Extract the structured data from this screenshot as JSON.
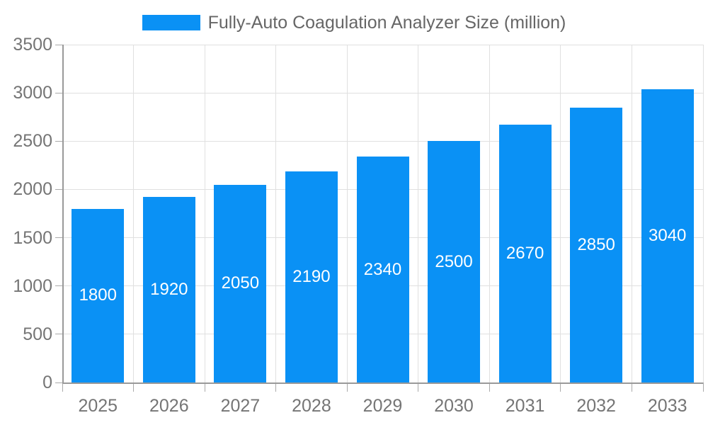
{
  "legend": {
    "label": "Fully-Auto Coagulation Analyzer Size (million)"
  },
  "chart_data": {
    "type": "bar",
    "title": "Fully-Auto Coagulation Analyzer Size (million)",
    "categories": [
      "2025",
      "2026",
      "2027",
      "2028",
      "2029",
      "2030",
      "2031",
      "2032",
      "2033"
    ],
    "values": [
      1800,
      1920,
      2050,
      2190,
      2340,
      2500,
      2670,
      2850,
      3040
    ],
    "xlabel": "",
    "ylabel": "",
    "ylim": [
      0,
      3500
    ],
    "ytick_step": 500,
    "grid": true,
    "legend_position": "top",
    "bar_value_labels": "inside-center"
  },
  "colors": {
    "bar": "#0a91f5",
    "bar_label": "#ffffff",
    "gridline": "#e0e0e0",
    "tick": "#aaaaaa",
    "axis_line": "#999999",
    "tick_label": "#757575",
    "legend_text": "#666666",
    "background": "#ffffff"
  }
}
